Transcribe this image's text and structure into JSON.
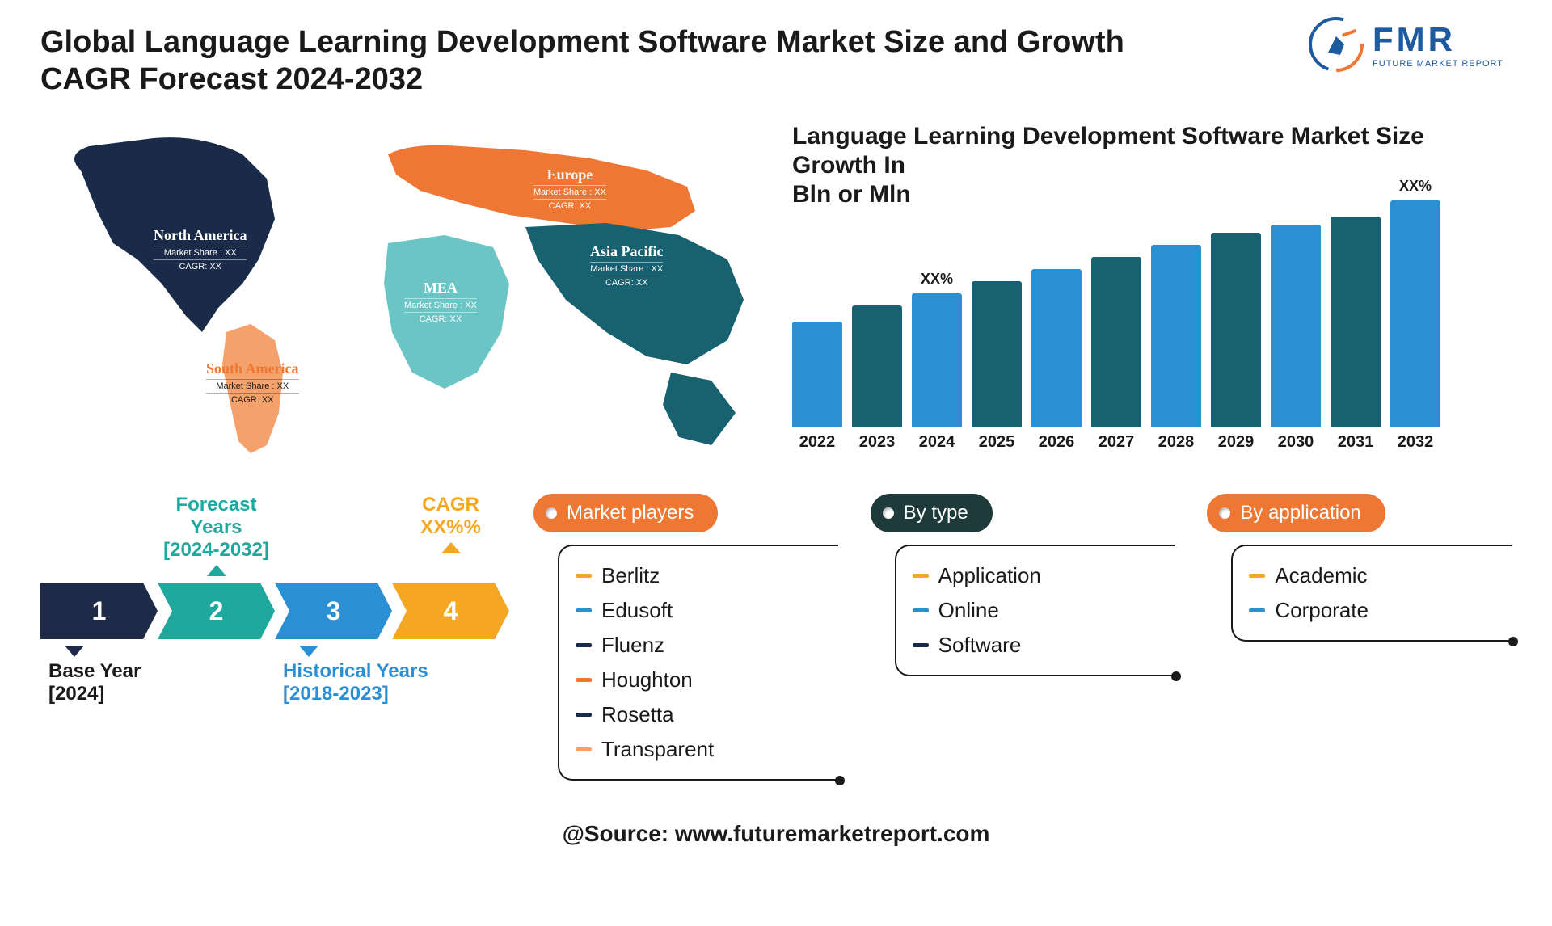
{
  "title": "Global Language Learning Development Software Market Size and Growth\n CAGR Forecast 2024-2032",
  "logo": {
    "fmr": "FMR",
    "sub": "FUTURE MARKET REPORT"
  },
  "regions": {
    "na": {
      "name": "North America",
      "share": "Market Share : XX",
      "cagr": "CAGR: XX",
      "color": "#1a2b4a"
    },
    "sa": {
      "name": "South America",
      "share": "Market Share : XX",
      "cagr": "CAGR: XX",
      "color": "#f5a16b"
    },
    "eu": {
      "name": "Europe",
      "share": "Market Share : XX",
      "cagr": "CAGR: XX",
      "color": "#ed7733"
    },
    "mea": {
      "name": "MEA",
      "share": "Market Share : XX",
      "cagr": "CAGR: XX",
      "color": "#6bc5c5"
    },
    "ap": {
      "name": "Asia Pacific",
      "share": "Market Share : XX",
      "cagr": "CAGR: XX",
      "color": "#186170"
    }
  },
  "chart": {
    "title": "Language Learning Development Software Market Size Growth In\nBln or Mln",
    "years": [
      "2022",
      "2023",
      "2024",
      "2025",
      "2026",
      "2027",
      "2028",
      "2029",
      "2030",
      "2031",
      "2032"
    ],
    "values": [
      130,
      150,
      165,
      180,
      195,
      210,
      225,
      240,
      250,
      260,
      280
    ],
    "colors": [
      "#2b8fd4",
      "#186170",
      "#2b8fd4",
      "#186170",
      "#2b8fd4",
      "#186170",
      "#2b8fd4",
      "#186170",
      "#2b8fd4",
      "#186170",
      "#2b8fd4"
    ],
    "pct_label": "XX%",
    "pct_indices": [
      2,
      10
    ]
  },
  "timeline": {
    "forecast_label": "Forecast Years",
    "forecast_range": "[2024-2032]",
    "forecast_color": "#1fa89e",
    "cagr_label": "CAGR",
    "cagr_value": "XX%%",
    "cagr_color": "#f5a623",
    "base_label": "Base Year",
    "base_range": "[2024]",
    "base_color": "#1a1a1a",
    "hist_label": "Historical Years",
    "hist_range": "[2018-2023]",
    "hist_color": "#2b8fd4",
    "segments": [
      {
        "num": "1",
        "color": "#1e2a47"
      },
      {
        "num": "2",
        "color": "#1fa89e"
      },
      {
        "num": "3",
        "color": "#2b8fd4"
      },
      {
        "num": "4",
        "color": "#f5a623"
      }
    ]
  },
  "categories": [
    {
      "title": "Market players",
      "pill_color": "#ed7733",
      "items": [
        {
          "label": "Berlitz",
          "color": "#f5a623"
        },
        {
          "label": "Edusoft",
          "color": "#2b8fd4"
        },
        {
          "label": "Fluenz",
          "color": "#1a2b4a"
        },
        {
          "label": "Houghton",
          "color": "#ed7733"
        },
        {
          "label": "Rosetta",
          "color": "#1a2b4a"
        },
        {
          "label": "Transparent",
          "color": "#f5a16b"
        }
      ]
    },
    {
      "title": "By type",
      "pill_color": "#1e3a3a",
      "items": [
        {
          "label": "Application",
          "color": "#f5a623"
        },
        {
          "label": "Online",
          "color": "#2b8fd4"
        },
        {
          "label": "Software",
          "color": "#1a2b4a"
        }
      ]
    },
    {
      "title": "By application",
      "pill_color": "#ed7733",
      "items": [
        {
          "label": "Academic",
          "color": "#f5a623"
        },
        {
          "label": "Corporate",
          "color": "#2b8fd4"
        }
      ]
    }
  ],
  "footer": "@Source: www.futuremarketreport.com"
}
